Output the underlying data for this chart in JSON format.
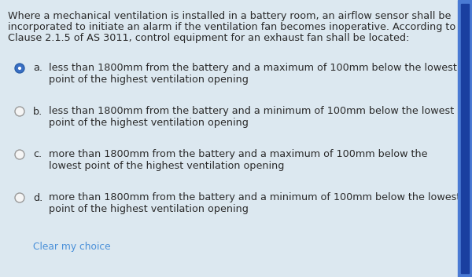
{
  "bg_color": "#dce8f0",
  "text_color": "#2a2a2a",
  "preamble_lines": [
    "Where a mechanical ventilation is installed in a battery room, an airflow sensor shall be",
    "incorporated to initiate an alarm if the ventilation fan becomes inoperative. According to",
    "Clause 2.1.5 of AS 3011, control equipment for an exhaust fan shall be located:"
  ],
  "options": [
    {
      "label": "a.",
      "text_lines": [
        "less than 1800mm from the battery and a maximum of 100mm below the lowest",
        "point of the highest ventilation opening"
      ],
      "selected": true
    },
    {
      "label": "b.",
      "text_lines": [
        "less than 1800mm from the battery and a minimum of 100mm below the lowest",
        "point of the highest ventilation opening"
      ],
      "selected": false
    },
    {
      "label": "c.",
      "text_lines": [
        "more than 1800mm from the battery and a maximum of 100mm below the",
        "lowest point of the highest ventilation opening"
      ],
      "selected": false
    },
    {
      "label": "d.",
      "text_lines": [
        "more than 1800mm from the battery and a minimum of 100mm below the lowest",
        "point of the highest ventilation opening"
      ],
      "selected": false
    }
  ],
  "clear_text": "Clear my choice",
  "clear_color": "#4a90d9",
  "selected_fill": "#3a6fc4",
  "selected_edge": "#2a5faa",
  "selected_dot": "#ffffff",
  "unselected_fill": "#f5f5f5",
  "unselected_edge": "#999999",
  "right_bar_color": "#1a3fa0",
  "right_bar_light": "#4a7ad4",
  "preamble_fontsize": 9.2,
  "option_fontsize": 9.2,
  "clear_fontsize": 8.8,
  "fig_width": 6.0,
  "fig_height": 3.53,
  "dpi": 100
}
